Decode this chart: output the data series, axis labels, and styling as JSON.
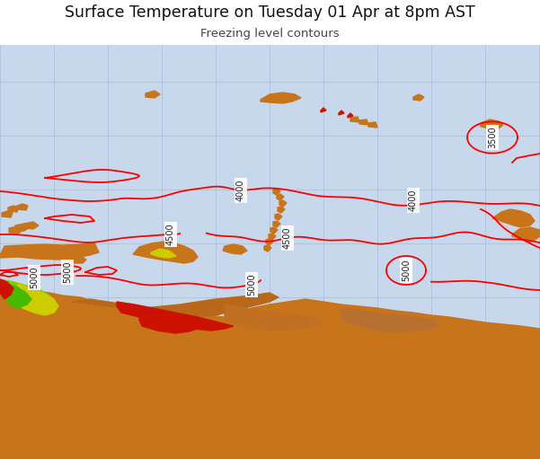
{
  "title": "Surface Temperature on Tuesday 01 Apr at 8pm AST",
  "subtitle": "Freezing level contours",
  "title_fontsize": 12.5,
  "subtitle_fontsize": 9.5,
  "bg_color": "#c8d8ec",
  "header_color": "#e8e8e8",
  "grid_color": "#a8bcd4",
  "contour_color": "#ff0000",
  "land_orange": "#c8741a",
  "land_dark_orange": "#b85a00",
  "land_red": "#cc1100",
  "land_yellow": "#cccc00",
  "land_lime": "#88cc00",
  "land_bright_green": "#44bb00",
  "figw": 6.01,
  "figh": 5.11,
  "dpi": 100
}
